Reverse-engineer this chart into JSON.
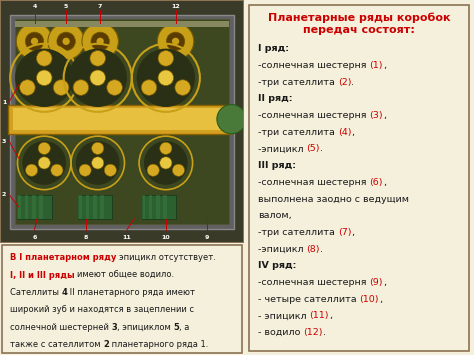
{
  "bg_color": "#f5f0dc",
  "border_color": "#8B7355",
  "right_title": "Планетарные ряды коробок\nпередач состоят:",
  "right_title_color": "#cc0000",
  "text_black": "#1a1a1a",
  "text_red": "#cc0000",
  "right_content": [
    {
      "parts": [
        {
          "t": "I ряд:",
          "bold": true,
          "c": "black"
        }
      ]
    },
    {
      "parts": [
        {
          "t": "-солнечная шестерня ",
          "bold": false,
          "c": "black"
        },
        {
          "t": "(1)",
          "bold": false,
          "c": "red"
        },
        {
          "t": ",",
          "bold": false,
          "c": "black"
        }
      ]
    },
    {
      "parts": [
        {
          "t": "-три сателлита ",
          "bold": false,
          "c": "black"
        },
        {
          "t": "(2)",
          "bold": false,
          "c": "red"
        },
        {
          "t": ".",
          "bold": false,
          "c": "black"
        }
      ]
    },
    {
      "parts": [
        {
          "t": "II ряд:",
          "bold": true,
          "c": "black"
        }
      ]
    },
    {
      "parts": [
        {
          "t": "-солнечная шестерня ",
          "bold": false,
          "c": "black"
        },
        {
          "t": "(3)",
          "bold": false,
          "c": "red"
        },
        {
          "t": ",",
          "bold": false,
          "c": "black"
        }
      ]
    },
    {
      "parts": [
        {
          "t": "-три сателлита ",
          "bold": false,
          "c": "black"
        },
        {
          "t": "(4)",
          "bold": false,
          "c": "red"
        },
        {
          "t": ",",
          "bold": false,
          "c": "black"
        }
      ]
    },
    {
      "parts": [
        {
          "t": "-эпицикл ",
          "bold": false,
          "c": "black"
        },
        {
          "t": "(5)",
          "bold": false,
          "c": "red"
        },
        {
          "t": ".",
          "bold": false,
          "c": "black"
        }
      ]
    },
    {
      "parts": [
        {
          "t": "III ряд:",
          "bold": true,
          "c": "black"
        }
      ]
    },
    {
      "parts": [
        {
          "t": "-солнечная шестерня ",
          "bold": false,
          "c": "black"
        },
        {
          "t": "(6)",
          "bold": false,
          "c": "red"
        },
        {
          "t": ",",
          "bold": false,
          "c": "black"
        }
      ]
    },
    {
      "parts": [
        {
          "t": "выполнена заодно с ведущим",
          "bold": false,
          "c": "black"
        }
      ]
    },
    {
      "parts": [
        {
          "t": "валом,",
          "bold": false,
          "c": "black"
        }
      ]
    },
    {
      "parts": [
        {
          "t": "-три сателлита ",
          "bold": false,
          "c": "black"
        },
        {
          "t": "(7)",
          "bold": false,
          "c": "red"
        },
        {
          "t": ",",
          "bold": false,
          "c": "black"
        }
      ]
    },
    {
      "parts": [
        {
          "t": "-эпицикл ",
          "bold": false,
          "c": "black"
        },
        {
          "t": "(8)",
          "bold": false,
          "c": "red"
        },
        {
          "t": ".",
          "bold": false,
          "c": "black"
        }
      ]
    },
    {
      "parts": [
        {
          "t": "IV ряд:",
          "bold": true,
          "c": "black"
        }
      ]
    },
    {
      "parts": [
        {
          "t": "-солнечная шестерня ",
          "bold": false,
          "c": "black"
        },
        {
          "t": "(9)",
          "bold": false,
          "c": "red"
        },
        {
          "t": ",",
          "bold": false,
          "c": "black"
        }
      ]
    },
    {
      "parts": [
        {
          "t": "- четыре сателлита ",
          "bold": false,
          "c": "black"
        },
        {
          "t": "(10)",
          "bold": false,
          "c": "red"
        },
        {
          "t": ",",
          "bold": false,
          "c": "black"
        }
      ]
    },
    {
      "parts": [
        {
          "t": "- эпицикл ",
          "bold": false,
          "c": "black"
        },
        {
          "t": "(11)",
          "bold": false,
          "c": "red"
        },
        {
          "t": ",",
          "bold": false,
          "c": "black"
        }
      ]
    },
    {
      "parts": [
        {
          "t": "- водило ",
          "bold": false,
          "c": "black"
        },
        {
          "t": "(12)",
          "bold": false,
          "c": "red"
        },
        {
          "t": ".",
          "bold": false,
          "c": "black"
        }
      ]
    }
  ],
  "bottom_content": [
    [
      {
        "t": "В I планетарном ряду ",
        "bold": true,
        "c": "red"
      },
      {
        "t": "эпицикл отсутствует.",
        "bold": false,
        "c": "black"
      }
    ],
    [
      {
        "t": "I, II и III ряды ",
        "bold": true,
        "c": "red"
      },
      {
        "t": "имеют общее водило.",
        "bold": false,
        "c": "black"
      }
    ],
    [
      {
        "t": "Сателлиты ",
        "bold": false,
        "c": "black"
      },
      {
        "t": "4",
        "bold": true,
        "c": "black"
      },
      {
        "t": " II планетарного ряда имеют",
        "bold": false,
        "c": "black"
      }
    ],
    [
      {
        "t": "широкий зуб и находятся в зацеплении с",
        "bold": false,
        "c": "black"
      }
    ],
    [
      {
        "t": "солнечной шестерней ",
        "bold": false,
        "c": "black"
      },
      {
        "t": "3",
        "bold": true,
        "c": "black"
      },
      {
        "t": ", эпициклом ",
        "bold": false,
        "c": "black"
      },
      {
        "t": "5",
        "bold": true,
        "c": "black"
      },
      {
        "t": ", а",
        "bold": false,
        "c": "black"
      }
    ],
    [
      {
        "t": "также с сателлитом ",
        "bold": false,
        "c": "black"
      },
      {
        "t": "2",
        "bold": true,
        "c": "black"
      },
      {
        "t": " планетарного ряда 1.",
        "bold": false,
        "c": "black"
      }
    ]
  ]
}
